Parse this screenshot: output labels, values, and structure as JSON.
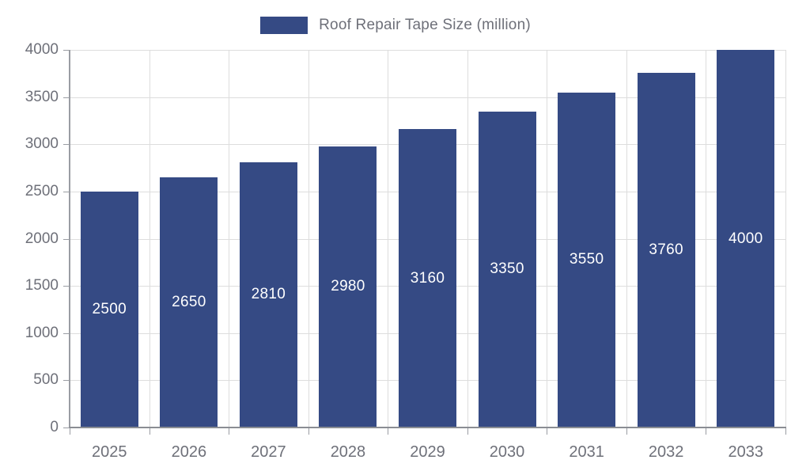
{
  "chart": {
    "legend": {
      "label": "Roof Repair Tape Size (million)"
    }
  },
  "chart_data": {
    "type": "bar",
    "title": "Roof Repair Tape Size (million)",
    "series_name": "Roof Repair Tape Size (million)",
    "categories": [
      "2025",
      "2026",
      "2027",
      "2028",
      "2029",
      "2030",
      "2031",
      "2032",
      "2033"
    ],
    "values": [
      2500,
      2650,
      2810,
      2980,
      3160,
      3350,
      3550,
      3760,
      4000
    ],
    "xlabel": "",
    "ylabel": "",
    "ylim": [
      0,
      4000
    ],
    "yticks": [
      0,
      500,
      1000,
      1500,
      2000,
      2500,
      3000,
      3500,
      4000
    ],
    "grid": true,
    "legend_position": "top",
    "bar_color": "#354A84",
    "bar_label_color": "#ffffff",
    "axis_text_color": "#6E7079",
    "gridline_color": "#dddddd"
  }
}
